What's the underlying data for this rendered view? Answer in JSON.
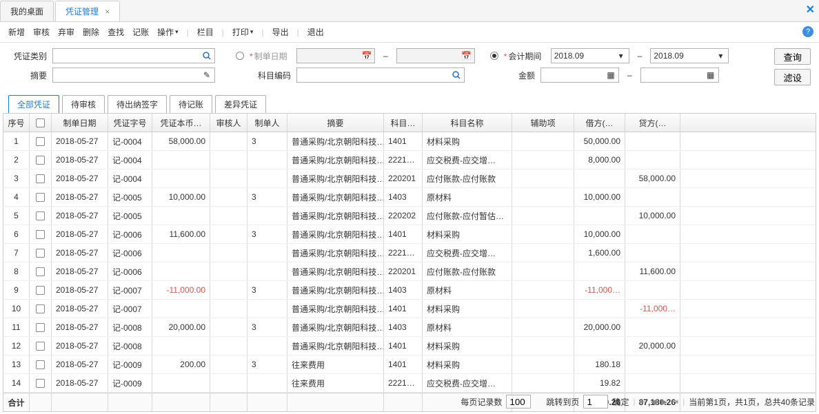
{
  "tabs": {
    "desktop": "我的桌面",
    "voucher": "凭证管理"
  },
  "toolbar": {
    "new": "新增",
    "audit": "审核",
    "abandon": "弃审",
    "delete": "删除",
    "find": "查找",
    "post": "记账",
    "operate": "操作",
    "column": "栏目",
    "print": "打印",
    "export": "导出",
    "exit": "退出"
  },
  "filter": {
    "voucher_type_label": "凭证类别",
    "summary_label": "摘要",
    "make_date_label": "制单日期",
    "acc_code_label": "科目编码",
    "period_label": "会计期间",
    "amount_label": "金额",
    "period_from": "2018.09",
    "period_to": "2018.09",
    "query_btn": "查询",
    "filter_btn": "滤设"
  },
  "subtabs": {
    "all": "全部凭证",
    "pend_audit": "待审核",
    "pend_sign": "待出纳签字",
    "pend_post": "待记账",
    "diff": "差异凭证"
  },
  "columns": {
    "seq": "序号",
    "chk": "",
    "date": "制单日期",
    "vno": "凭证字号",
    "amt": "凭证本币…",
    "aud": "审核人",
    "maker": "制单人",
    "summary": "摘要",
    "accno": "科目…",
    "accname": "科目名称",
    "aux": "辅助项",
    "dr": "借方(…",
    "cr": "贷方(…"
  },
  "rows": [
    {
      "seq": "1",
      "date": "2018-05-27",
      "vno": "记-0004",
      "amt": "58,000.00",
      "maker": "3",
      "summary": "普通采购/北京朝阳科技…",
      "accno": "1401",
      "accname": "材料采购",
      "dr": "50,000.00",
      "cr": ""
    },
    {
      "seq": "2",
      "date": "2018-05-27",
      "vno": "记-0004",
      "amt": "",
      "maker": "",
      "summary": "普通采购/北京朝阳科技…",
      "accno": "2221…",
      "accname": "应交税费-应交增…",
      "dr": "8,000.00",
      "cr": ""
    },
    {
      "seq": "3",
      "date": "2018-05-27",
      "vno": "记-0004",
      "amt": "",
      "maker": "",
      "summary": "普通采购/北京朝阳科技…",
      "accno": "220201",
      "accname": "应付账款-应付账款",
      "dr": "",
      "cr": "58,000.00"
    },
    {
      "seq": "4",
      "date": "2018-05-27",
      "vno": "记-0005",
      "amt": "10,000.00",
      "maker": "3",
      "summary": "普通采购/北京朝阳科技…",
      "accno": "1403",
      "accname": "原材料",
      "dr": "10,000.00",
      "cr": ""
    },
    {
      "seq": "5",
      "date": "2018-05-27",
      "vno": "记-0005",
      "amt": "",
      "maker": "",
      "summary": "普通采购/北京朝阳科技…",
      "accno": "220202",
      "accname": "应付账款-应付暂估…",
      "dr": "",
      "cr": "10,000.00"
    },
    {
      "seq": "6",
      "date": "2018-05-27",
      "vno": "记-0006",
      "amt": "11,600.00",
      "maker": "3",
      "summary": "普通采购/北京朝阳科技…",
      "accno": "1401",
      "accname": "材料采购",
      "dr": "10,000.00",
      "cr": ""
    },
    {
      "seq": "7",
      "date": "2018-05-27",
      "vno": "记-0006",
      "amt": "",
      "maker": "",
      "summary": "普通采购/北京朝阳科技…",
      "accno": "2221…",
      "accname": "应交税费-应交增…",
      "dr": "1,600.00",
      "cr": ""
    },
    {
      "seq": "8",
      "date": "2018-05-27",
      "vno": "记-0006",
      "amt": "",
      "maker": "",
      "summary": "普通采购/北京朝阳科技…",
      "accno": "220201",
      "accname": "应付账款-应付账款",
      "dr": "",
      "cr": "11,600.00"
    },
    {
      "seq": "9",
      "date": "2018-05-27",
      "vno": "记-0007",
      "amt": "-11,000.00",
      "amt_neg": true,
      "maker": "3",
      "summary": "普通采购/北京朝阳科技…",
      "accno": "1403",
      "accname": "原材料",
      "dr": "-11,000…",
      "dr_neg": true,
      "cr": ""
    },
    {
      "seq": "10",
      "date": "2018-05-27",
      "vno": "记-0007",
      "amt": "",
      "maker": "",
      "summary": "普通采购/北京朝阳科技…",
      "accno": "1401",
      "accname": "材料采购",
      "dr": "",
      "cr": "-11,000…",
      "cr_neg": true
    },
    {
      "seq": "11",
      "date": "2018-05-27",
      "vno": "记-0008",
      "amt": "20,000.00",
      "maker": "3",
      "summary": "普通采购/北京朝阳科技…",
      "accno": "1403",
      "accname": "原材料",
      "dr": "20,000.00",
      "cr": ""
    },
    {
      "seq": "12",
      "date": "2018-05-27",
      "vno": "记-0008",
      "amt": "",
      "maker": "",
      "summary": "普通采购/北京朝阳科技…",
      "accno": "1401",
      "accname": "材料采购",
      "dr": "",
      "cr": "20,000.00"
    },
    {
      "seq": "13",
      "date": "2018-05-27",
      "vno": "记-0009",
      "amt": "200.00",
      "maker": "3",
      "summary": "往来费用",
      "accno": "1401",
      "accname": "材料采购",
      "dr": "180.18",
      "cr": ""
    },
    {
      "seq": "14",
      "date": "2018-05-27",
      "vno": "记-0009",
      "amt": "",
      "maker": "",
      "summary": "往来费用",
      "accno": "2221…",
      "accname": "应交税费-应交增…",
      "dr": "19.82",
      "cr": ""
    }
  ],
  "total": {
    "label": "合计",
    "dr": "87,180.26",
    "cr": "87,180.26"
  },
  "pager": {
    "page_size_label": "每页记录数",
    "page_size": "100",
    "jump_label": "跳转到页",
    "jump_page": "1",
    "confirm": "确定",
    "status": "当前第1页，共1页，总共40条记录"
  }
}
